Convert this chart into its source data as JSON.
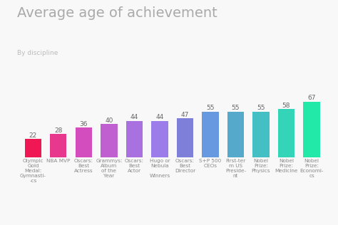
{
  "title": "Average age of achievement",
  "subtitle": "By discipline",
  "categories": [
    "Olympic\nGold\nMedal:\nGymnasti-\n-cs",
    "NBA MVP",
    "Oscars:\nBest\nActress",
    "Grammys:\nAlbum\nof the\nYear",
    "Oscars:\nBest\nActor",
    "Hugo or\nNebula\n\nWinners",
    "Oscars:\nBest\nDirector",
    "S+P 500\nCEOs",
    "First-ter\nm US\nPreside-\nnt",
    "Nobel\nPrize:\nPhysics",
    "Nobel\nPrize:\nMedicine",
    "Nobel\nPrize:\nEconomi-\ncs"
  ],
  "values": [
    22,
    28,
    36,
    40,
    44,
    44,
    47,
    55,
    55,
    55,
    58,
    67
  ],
  "colors": [
    "#f01755",
    "#e8388e",
    "#d44dbf",
    "#c060d0",
    "#a970e0",
    "#9b7ce8",
    "#7d7fd8",
    "#6699e0",
    "#55aacc",
    "#44bfc4",
    "#33d4b8",
    "#22e8a8"
  ],
  "background_color": "#f8f8f8",
  "ylim": [
    0,
    78
  ],
  "bar_width": 0.65,
  "title_fontsize": 14,
  "subtitle_fontsize": 6.5,
  "value_fontsize": 6.5,
  "tick_fontsize": 5.2,
  "value_color": "#666666",
  "tick_color": "#888888"
}
